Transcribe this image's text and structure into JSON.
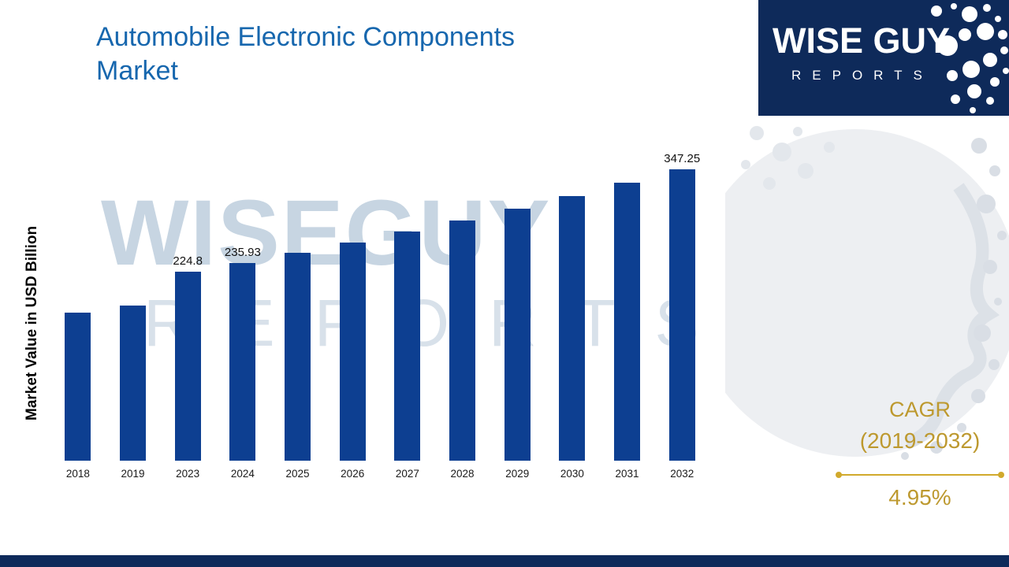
{
  "page": {
    "title_line1": "Automobile Electronic Components",
    "title_line2": "Market"
  },
  "logo": {
    "brand_top": "WISE GUY",
    "brand_sub": "REPORTS"
  },
  "watermark": {
    "line1": "WISEGUY",
    "line2": "REPORTS"
  },
  "cagr": {
    "label": "CAGR",
    "range": "(2019-2032)",
    "value": "4.95%"
  },
  "chart_data": {
    "type": "bar",
    "title": "Automobile Electronic Components Market",
    "xlabel": "",
    "ylabel": "Market Value in USD Billion",
    "categories": [
      "2018",
      "2019",
      "2023",
      "2024",
      "2025",
      "2026",
      "2027",
      "2028",
      "2029",
      "2030",
      "2031",
      "2032"
    ],
    "values": [
      176.6,
      185.3,
      224.8,
      235.93,
      247.6,
      259.8,
      272.7,
      286.2,
      300.4,
      315.3,
      330.9,
      347.25
    ],
    "bar_labels": [
      "",
      "",
      "224.8",
      "235.93",
      "",
      "",
      "",
      "",
      "",
      "",
      "",
      "347.25"
    ],
    "ylim": [
      0,
      380
    ],
    "grid": false,
    "legend": "none",
    "bar_color": "#0d3f91"
  },
  "colors": {
    "title_blue": "#1767ae",
    "navy": "#0e2a5a",
    "gold": "#bd992f",
    "bar_blue": "#0d3f91",
    "watermark_blue": "#c7d5e2"
  }
}
